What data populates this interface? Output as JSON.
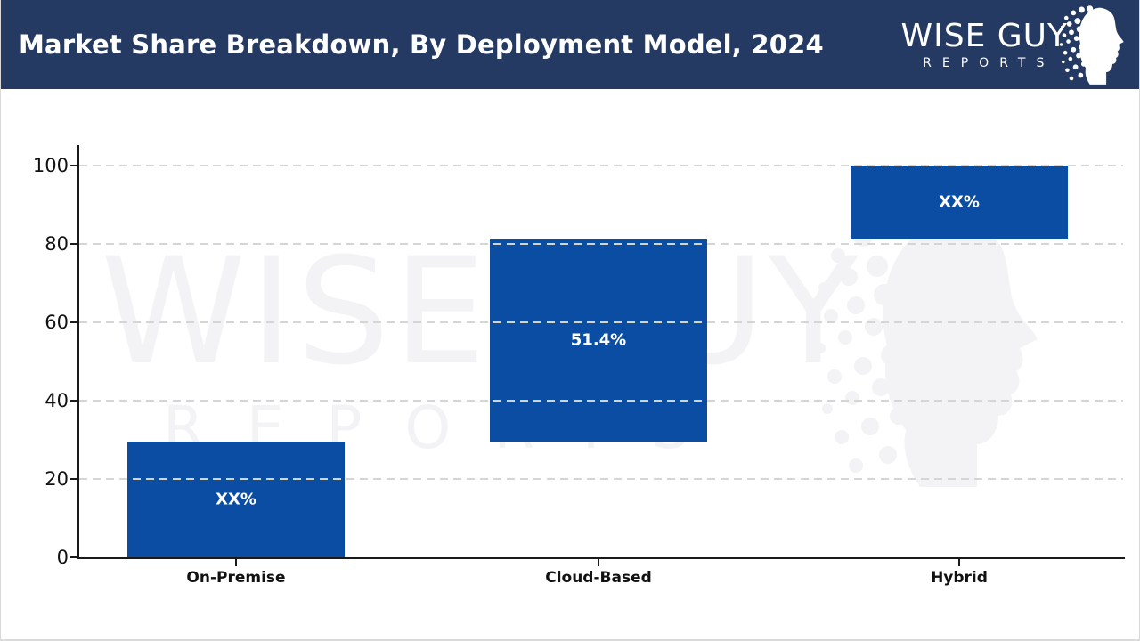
{
  "header": {
    "title": "Market Share Breakdown, By Deployment Model, 2024",
    "logo": {
      "wordmark": "WISE GUY",
      "subtitle": "REPORTS"
    }
  },
  "watermark": {
    "wordmark": "WISE GUY",
    "subtitle": "REPORTS"
  },
  "chart_data": {
    "type": "bar",
    "subtype": "waterfall",
    "title": "Market Share Breakdown, By Deployment Model, 2024",
    "categories": [
      "On-Premise",
      "Cloud-Based",
      "Hybrid"
    ],
    "bars": [
      {
        "category": "On-Premise",
        "start": 0,
        "end": 29.6,
        "value_label": "XX%"
      },
      {
        "category": "Cloud-Based",
        "start": 29.6,
        "end": 81.0,
        "value_label": "51.4%"
      },
      {
        "category": "Hybrid",
        "start": 81.0,
        "end": 100,
        "value_label": "XX%"
      }
    ],
    "yticks": [
      0,
      20,
      40,
      60,
      80,
      100
    ],
    "ylim": [
      0,
      105
    ],
    "xlabel": "",
    "ylabel": "",
    "grid": "horizontal-dashed",
    "legend": "none",
    "bar_color": "#0b4da2"
  },
  "colors": {
    "header_bg": "#243a62",
    "bar": "#0b4da2",
    "watermark": "#f3f3f5",
    "grid": "#d5d5d5",
    "axis": "#1a1a1a"
  }
}
